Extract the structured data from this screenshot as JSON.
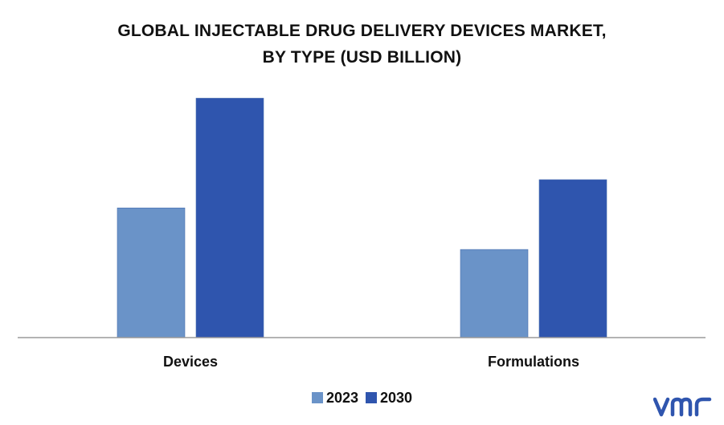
{
  "chart_data": {
    "type": "bar",
    "title_line1": "GLOBAL INJECTABLE DRUG DELIVERY DEVICES MARKET,",
    "title_line2": "BY TYPE (USD BILLION)",
    "categories": [
      "Devices",
      "Formulations"
    ],
    "series": [
      {
        "name": "2023",
        "color": "#6a93c8",
        "values": [
          15.6,
          10.6
        ]
      },
      {
        "name": "2030",
        "color": "#2f55ae",
        "values": [
          28.8,
          19.0
        ]
      }
    ],
    "xlabel": "",
    "ylabel": "",
    "ylim": [
      0,
      30
    ],
    "grid": false,
    "legend_position": "bottom-center"
  },
  "branding": {
    "logo_icon": "vmr-logo-icon",
    "logo_color": "#2f55ae"
  }
}
